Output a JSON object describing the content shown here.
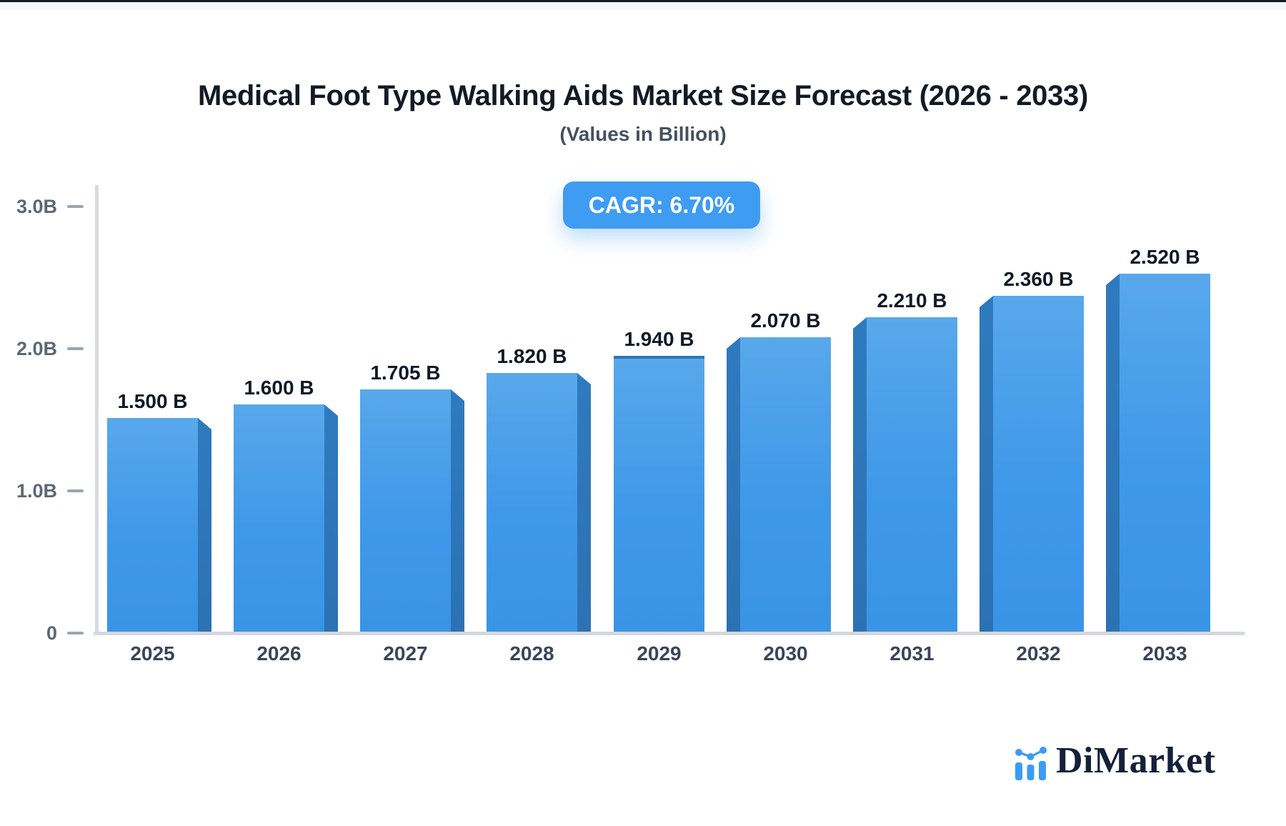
{
  "page": {
    "title": "Medical Foot Type Walking Aids Market Size Forecast (2026 - 2033)",
    "subtitle": "(Values in Billion)"
  },
  "cagr_badge": {
    "label": "CAGR: 6.70%"
  },
  "chart_data": {
    "type": "bar",
    "title": "Medical Foot Type Walking Aids Market Size Forecast (2026 - 2033)",
    "subtitle": "(Values in Billion)",
    "categories": [
      "2025",
      "2026",
      "2027",
      "2028",
      "2029",
      "2030",
      "2031",
      "2032",
      "2033"
    ],
    "values": [
      1.5,
      1.6,
      1.705,
      1.82,
      1.94,
      2.07,
      2.21,
      2.36,
      2.52
    ],
    "value_labels": [
      "1.500 B",
      "1.600 B",
      "1.705 B",
      "1.820 B",
      "1.940 B",
      "2.070 B",
      "2.210 B",
      "2.360 B",
      "2.520 B"
    ],
    "unit": "Billion",
    "xlabel": "",
    "ylabel": "",
    "ylim": [
      0,
      3
    ],
    "y_ticks": [
      {
        "label": "3.0B",
        "value": 3
      },
      {
        "label": "2.0B",
        "value": 2
      },
      {
        "label": "1.0B",
        "value": 1
      },
      {
        "label": "0",
        "value": 0
      }
    ],
    "grid": false,
    "legend": false,
    "style": "3d-perspective-bars"
  },
  "footer": {
    "logo_text": "DiMarket",
    "logo_icon": "mini-bar-chart-logo-icon"
  },
  "colors": {
    "accent_blue": "#3e9cf2",
    "bar_face_top": "#58a8eb",
    "bar_face_bottom": "#3a94e6",
    "bar_side": "#2d77bb",
    "axis_line": "#d5dade",
    "tick_text": "#5b6874",
    "value_text": "#101927",
    "year_text": "#39455a",
    "logo_blue": "#3d9bf5",
    "logo_navy": "#15203a"
  }
}
